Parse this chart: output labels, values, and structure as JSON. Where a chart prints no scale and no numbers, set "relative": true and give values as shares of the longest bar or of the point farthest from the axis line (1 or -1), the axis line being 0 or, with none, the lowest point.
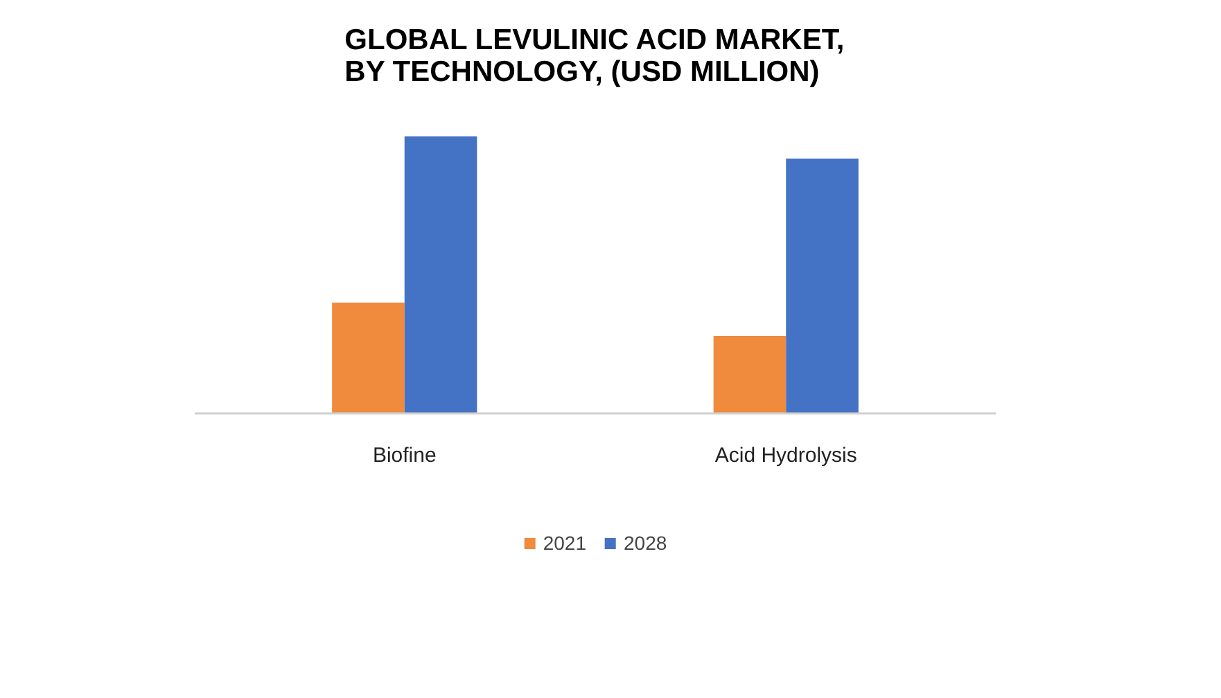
{
  "chart_data": {
    "type": "bar",
    "title": "GLOBAL LEVULINIC ACID MARKET,\nBY TECHNOLOGY, (USD MILLION)",
    "categories": [
      "Biofine",
      "Acid Hydrolysis"
    ],
    "relative": true,
    "series": [
      {
        "name": "2021",
        "color": "#f08a3c",
        "values": [
          0.4,
          0.28
        ]
      },
      {
        "name": "2028",
        "color": "#4472c4",
        "values": [
          1,
          0.92
        ]
      }
    ],
    "legend": "bottom"
  }
}
